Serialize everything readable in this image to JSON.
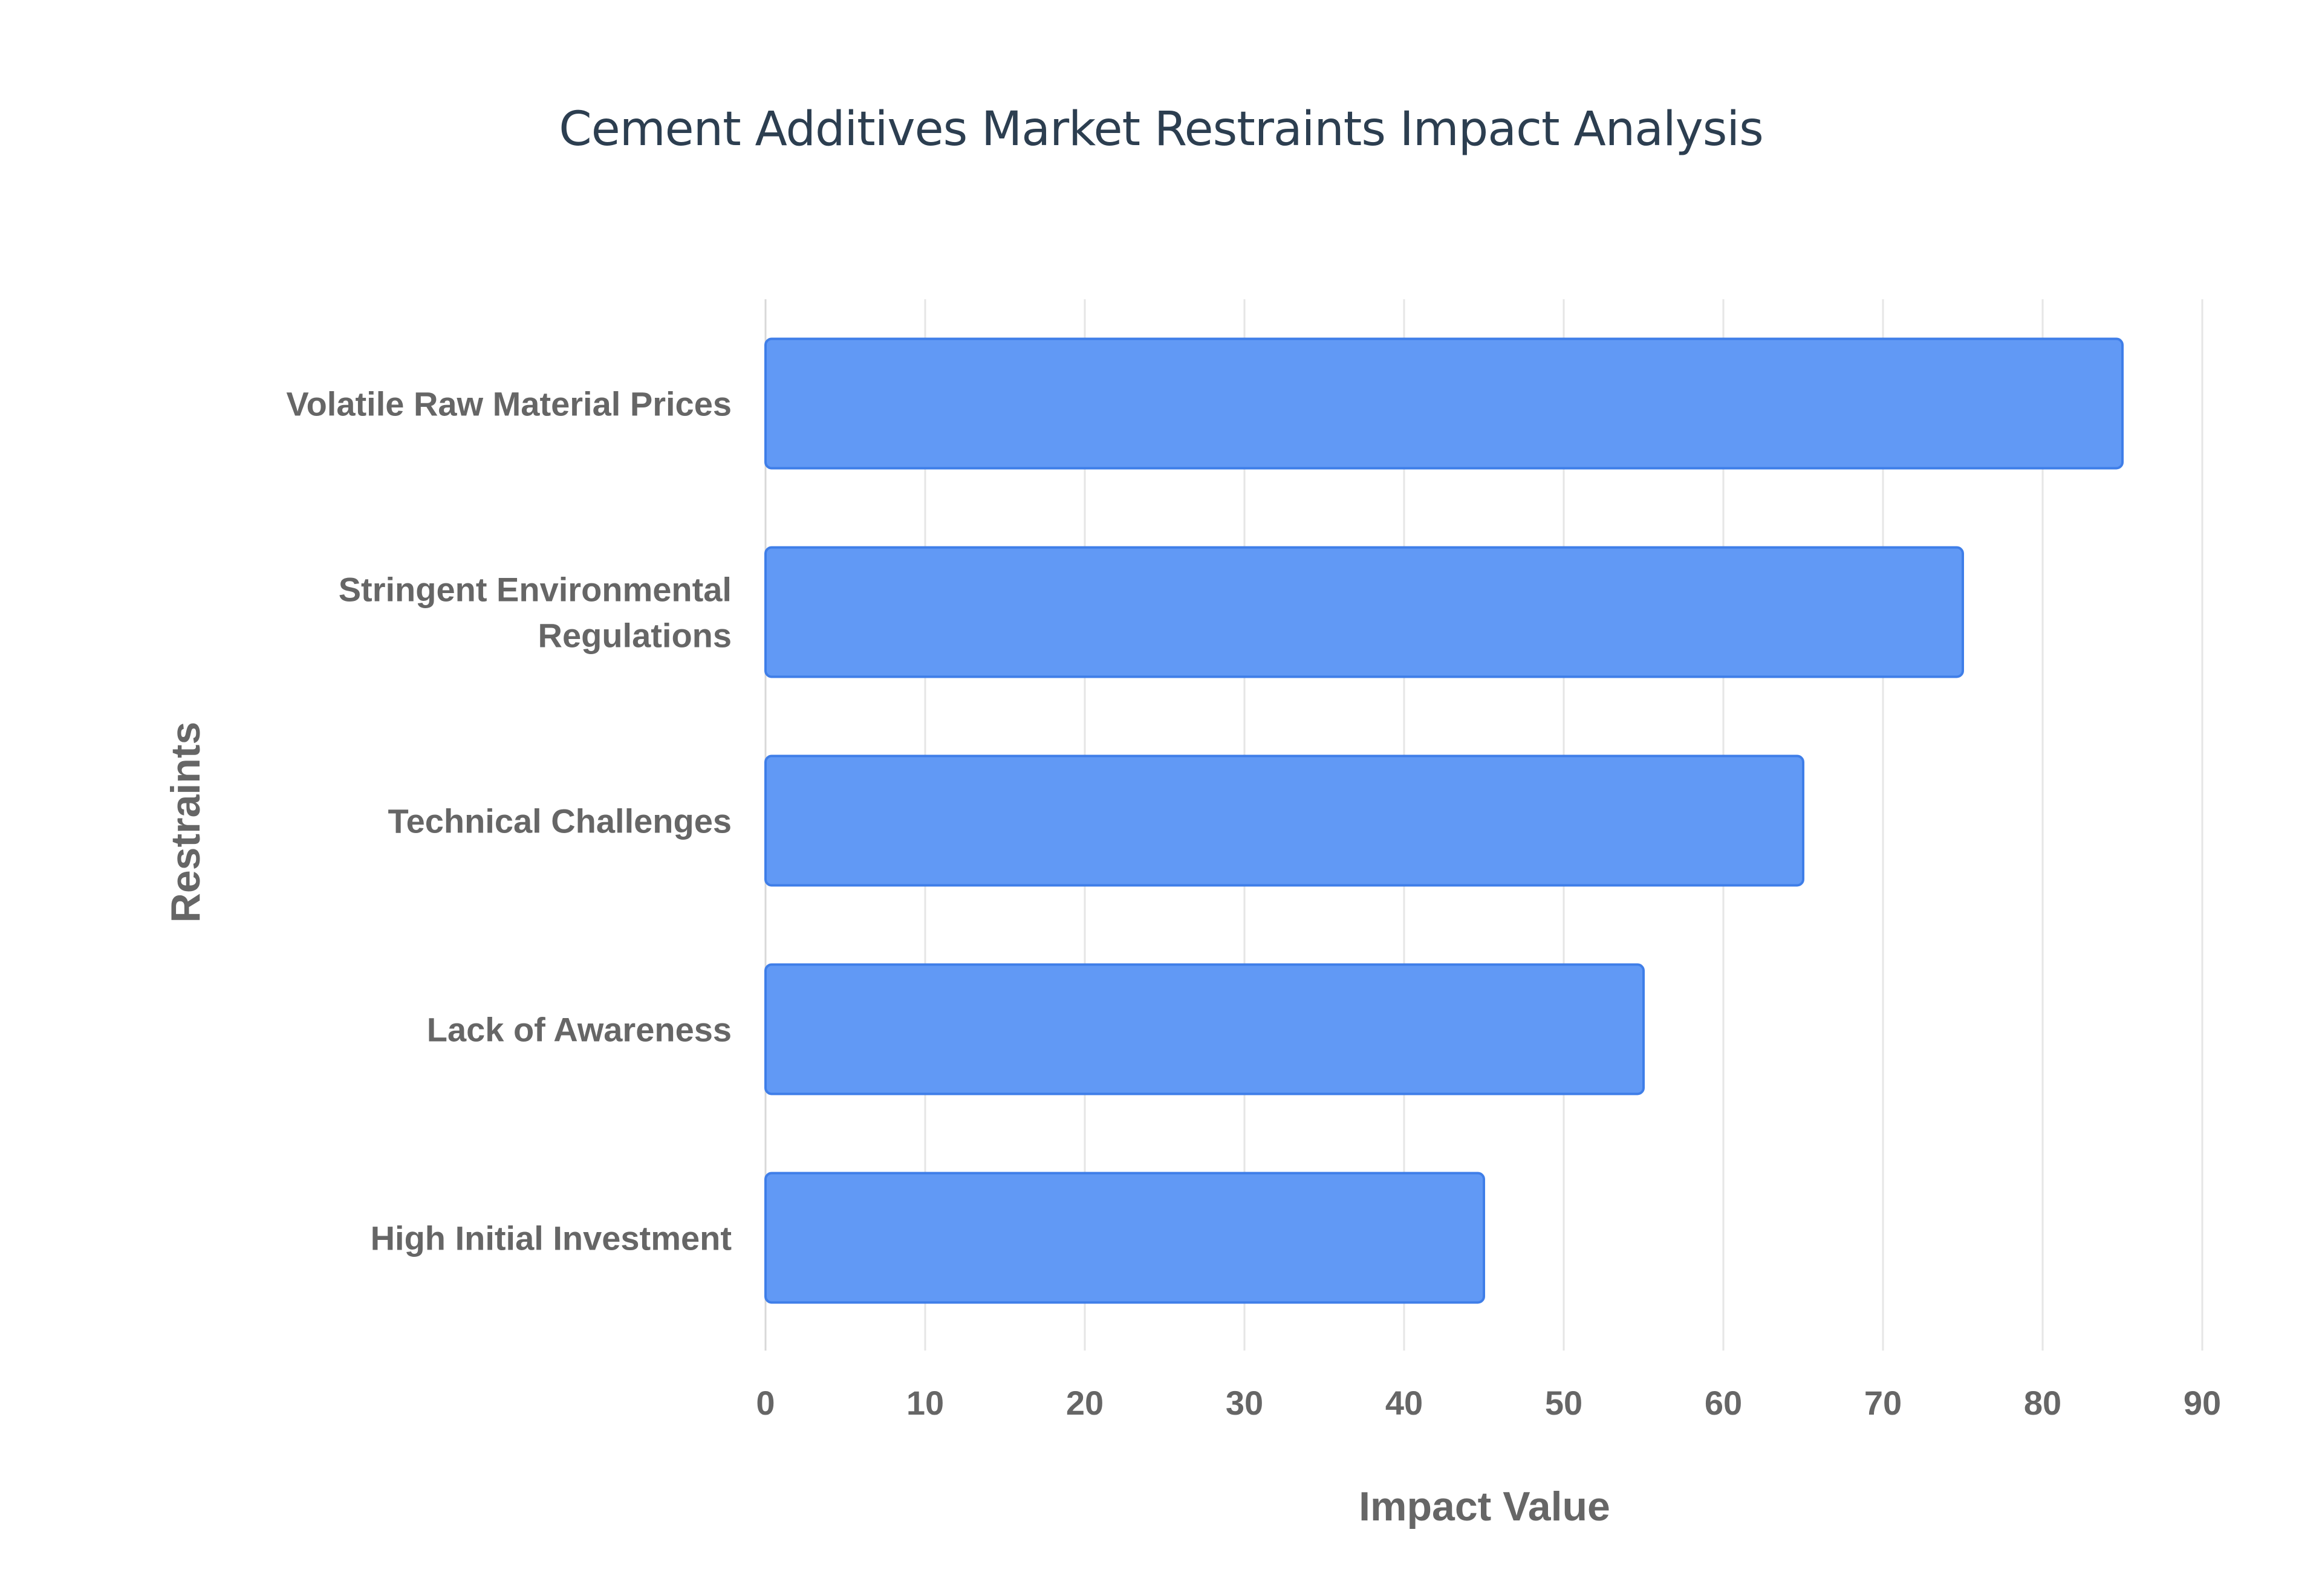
{
  "chart_data": {
    "type": "bar",
    "orientation": "horizontal",
    "title": "Cement Additives Market Restraints Impact Analysis",
    "xlabel": "Impact Value",
    "ylabel": "Restraints",
    "categories": [
      "Volatile Raw Material Prices",
      "Stringent Environmental Regulations",
      "Technical Challenges",
      "Lack of Awareness",
      "High Initial Investment"
    ],
    "category_lines": [
      [
        "Volatile Raw Material Prices"
      ],
      [
        "Stringent Environmental",
        "Regulations"
      ],
      [
        "Technical Challenges"
      ],
      [
        "Lack of Awareness"
      ],
      [
        "High Initial Investment"
      ]
    ],
    "values": [
      85,
      75,
      65,
      55,
      45
    ],
    "xlim": [
      0,
      90
    ],
    "xticks": [
      0,
      10,
      20,
      30,
      40,
      50,
      60,
      70,
      80,
      90
    ],
    "grid": true,
    "bar_color": "#6199f5",
    "bar_border_color": "#3f7ee8"
  }
}
